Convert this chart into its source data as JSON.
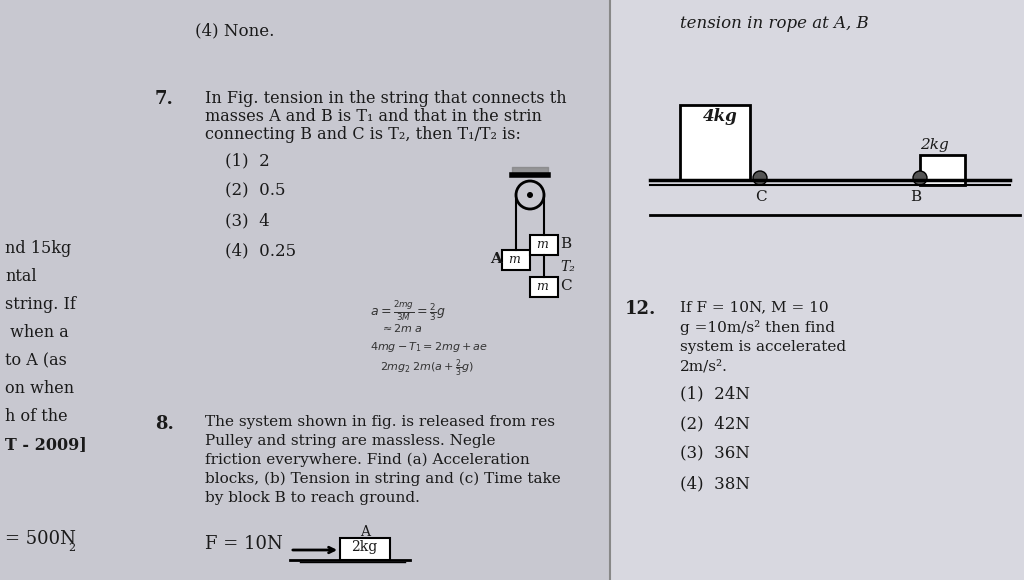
{
  "bg_color": "#c8c8d0",
  "text_color": "#1a1a1a",
  "page_bg": "#d0d0d8",
  "title": "tension in rope at A, B",
  "q4_text": "(4) None.",
  "q7_num": "7.",
  "q7_text_line1": "In Fig. tension in the string that connects th",
  "q7_text_line2": "masses A and B is T₁ and that in the strin",
  "q7_text_line3": "connecting B and C is T₂, then T₁/T₂ is:",
  "q7_options": [
    "(1)  2",
    "(2)  0.5",
    "(3)  4",
    "(4)  0.25"
  ],
  "q8_num": "8.",
  "q8_text_line1": "The system shown in fig. is released from res",
  "q8_text_line2": "Pulley and string are massless. Negle",
  "q8_text_line3": "friction everywhere. Find (a) Acceleration",
  "q8_text_line4": "blocks, (b) Tension in string and (c) Time take",
  "q8_text_line5": "by block B to reach ground.",
  "left_col_lines": [
    "nd 15kg",
    "ntal",
    "string. If",
    " when a",
    "to A (as",
    "on when",
    "h of the",
    "T - 2009]"
  ],
  "q12_num": "12.",
  "q12_text_line1": "If F = 10N, M = 10",
  "q12_text_line2": "g =10m/s² then find",
  "q12_text_line3": "system is accelerated",
  "q12_text_line4": "2m/s².",
  "q12_options": [
    "(1)  24N",
    "(2)  42N",
    "(3)  36N",
    "(4)  38N"
  ],
  "bottom_left": "= 500N",
  "bottom_eq": "F = 10N",
  "font_size_body": 11,
  "font_size_num": 12,
  "font_size_title": 12
}
